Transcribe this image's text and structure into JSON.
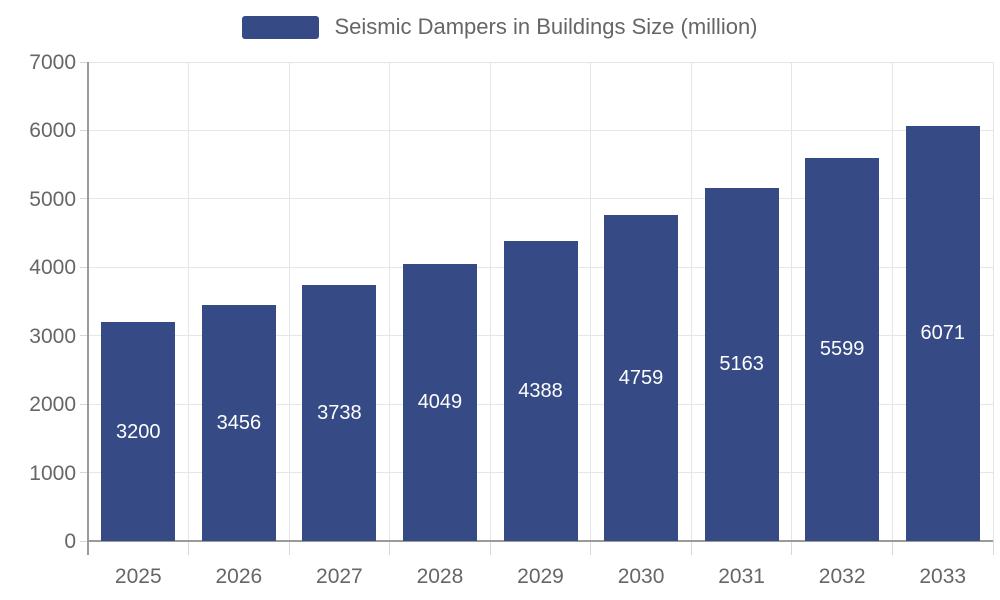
{
  "legend": {
    "position": "top"
  },
  "chart_data": {
    "type": "bar",
    "title": "Seismic Dampers in Buildings Size (million)",
    "categories": [
      "2025",
      "2026",
      "2027",
      "2028",
      "2029",
      "2030",
      "2031",
      "2032",
      "2033"
    ],
    "values": [
      3200,
      3456,
      3738,
      4049,
      4388,
      4759,
      5163,
      5599,
      6071
    ],
    "xlabel": "",
    "ylabel": "",
    "ylim": [
      0,
      7000
    ],
    "yticks": [
      0,
      1000,
      2000,
      3000,
      4000,
      5000,
      6000,
      7000
    ],
    "grid": true,
    "legend_position": "top",
    "bar_color": "#364A85",
    "bar_label_color": "#ffffff",
    "axis_text_color": "#666666",
    "gridline_color": "#e6e6e6",
    "minor_tick_color": "#d6d6d6",
    "axis_line_color": "#9a9a9a"
  }
}
